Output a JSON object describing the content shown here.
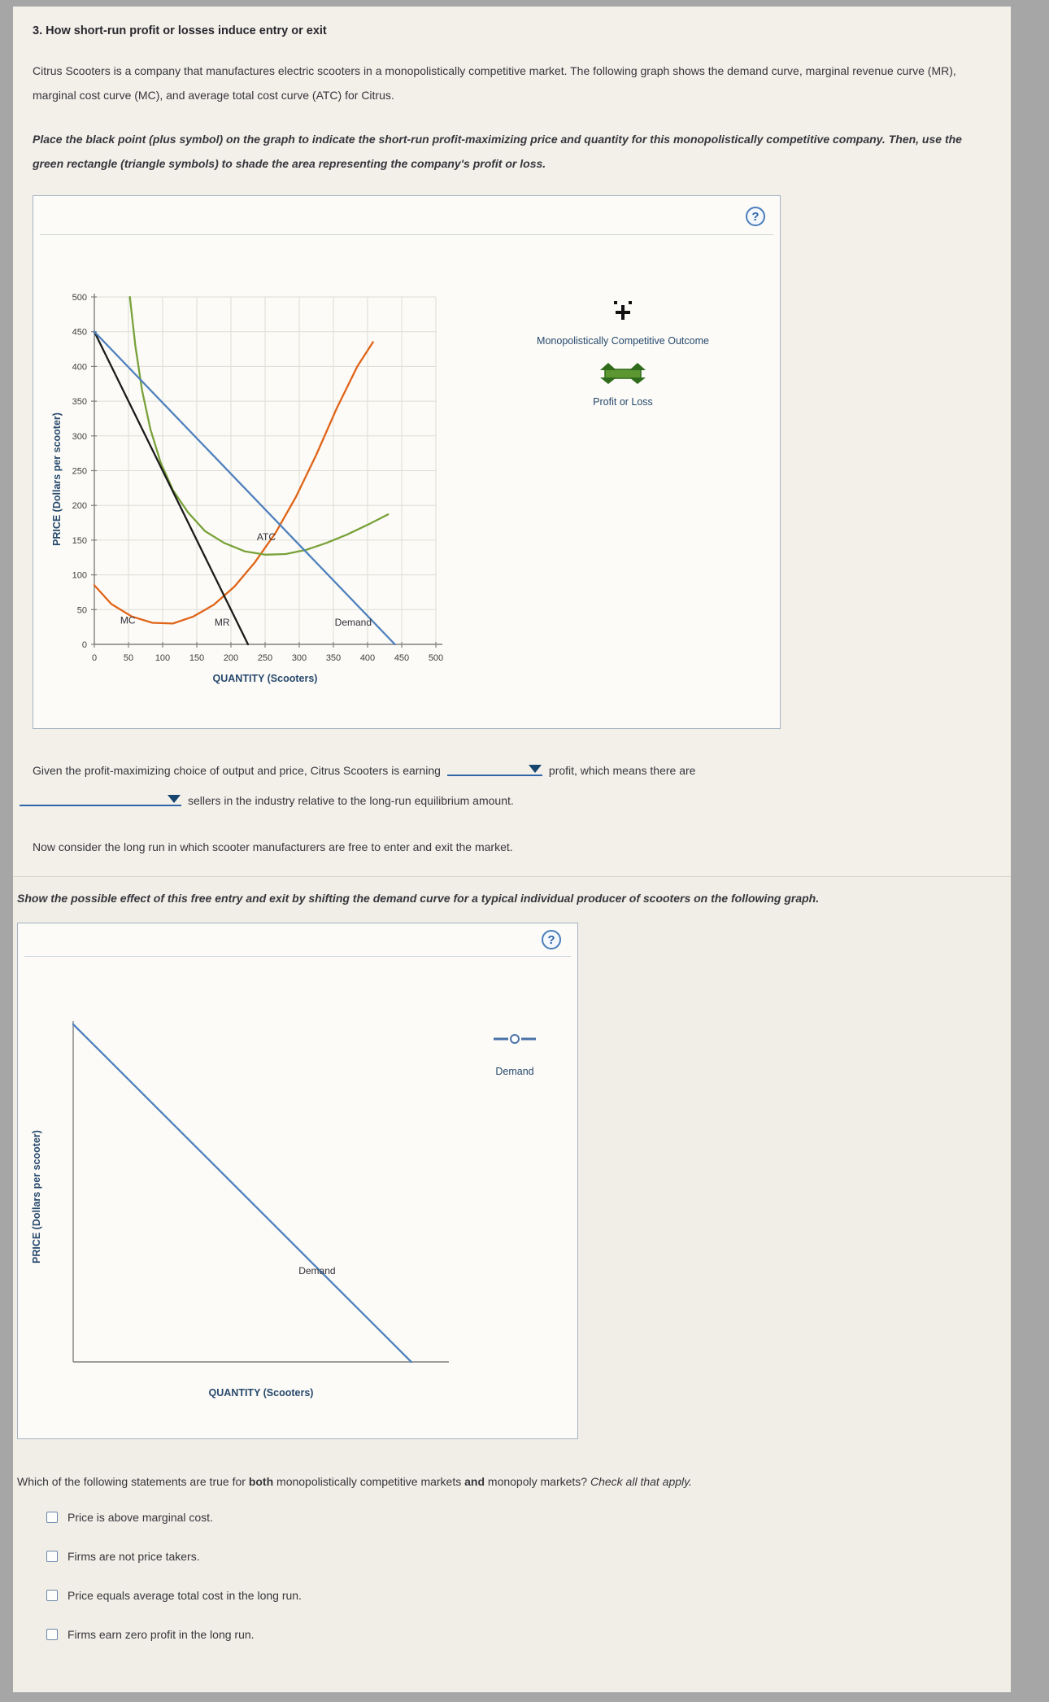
{
  "help_label": "?",
  "heading": "3. How short-run profit or losses induce entry or exit",
  "intro": "Citrus Scooters is a company that manufactures electric scooters in a monopolistically competitive market. The following graph shows the demand curve, marginal revenue curve (MR), marginal cost curve (MC), and average total cost curve (ATC) for Citrus.",
  "instruction1": "Place the black point (plus symbol) on the graph to indicate the short-run profit-maximizing price and quantity for this monopolistically competitive company. Then, use the green rectangle (triangle symbols) to shade the area representing the company's profit or loss.",
  "graph1_legend": {
    "point_tool": "Monopolistically Competitive Outcome",
    "shade_tool": "Profit or Loss"
  },
  "fill": {
    "p1": "Given the profit-maximizing choice of output and price, Citrus Scooters is earning",
    "p2": "profit, which means there are",
    "p3": "sellers in the industry relative to the long-run equilibrium amount."
  },
  "long_run": "Now consider the long run in which scooter manufacturers are free to enter and exit the market.",
  "instruction2": "Show the possible effect of this free entry and exit by shifting the demand curve for a typical individual producer of scooters on the following graph.",
  "graph2_legend": "Demand",
  "question": {
    "p1": "Which of the following statements are true for",
    "b1": "both",
    "p2": "monopolistically competitive markets",
    "b2": "and",
    "p3": "monopoly markets?",
    "italic": "Check all that apply."
  },
  "checklist": [
    "Price is above marginal cost.",
    "Firms are not price takers.",
    "Price equals average total cost in the long run.",
    "Firms earn zero profit in the long run."
  ],
  "colors": {
    "demand": "#4f81bd",
    "mc": "#e06418",
    "atc": "#79a23a",
    "mr": "#1b1b1b",
    "accent_blue": "#2f66a8",
    "dropdown_triangle": "#17456e",
    "axis_title": "#27496d"
  },
  "chart_data": [
    {
      "type": "line",
      "xlabel": "QUANTITY (Scooters)",
      "ylabel": "PRICE (Dollars per scooter)",
      "xlim": [
        0,
        500
      ],
      "ylim": [
        0,
        500
      ],
      "xticks": [
        0,
        50,
        100,
        150,
        200,
        250,
        300,
        350,
        400,
        450,
        500
      ],
      "yticks": [
        0,
        50,
        100,
        150,
        200,
        250,
        300,
        350,
        400,
        450,
        500
      ],
      "grid": true,
      "series": [
        {
          "name": "MC",
          "color": "#e06418",
          "points": [
            [
              0,
              85
            ],
            [
              25,
              58
            ],
            [
              55,
              40
            ],
            [
              85,
              31
            ],
            [
              115,
              30
            ],
            [
              145,
              40
            ],
            [
              175,
              57
            ],
            [
              205,
              83
            ],
            [
              235,
              118
            ],
            [
              265,
              160
            ],
            [
              295,
              212
            ],
            [
              325,
              273
            ],
            [
              355,
              340
            ],
            [
              385,
              400
            ],
            [
              408,
              435
            ]
          ]
        },
        {
          "name": "ATC",
          "color": "#79a23a",
          "points": [
            [
              52,
              500
            ],
            [
              60,
              430
            ],
            [
              70,
              365
            ],
            [
              82,
              310
            ],
            [
              97,
              262
            ],
            [
              115,
              222
            ],
            [
              137,
              190
            ],
            [
              162,
              163
            ],
            [
              190,
              146
            ],
            [
              220,
              134
            ],
            [
              250,
              129
            ],
            [
              280,
              130
            ],
            [
              310,
              136
            ],
            [
              340,
              146
            ],
            [
              370,
              158
            ],
            [
              400,
              172
            ],
            [
              430,
              187
            ]
          ]
        },
        {
          "name": "MR",
          "color": "#1b1b1b",
          "points": [
            [
              0,
              450
            ],
            [
              225,
              0
            ]
          ]
        },
        {
          "name": "Demand",
          "color": "#4f81bd",
          "points": [
            [
              0,
              450
            ],
            [
              440,
              0
            ]
          ]
        }
      ],
      "labels": [
        {
          "text": "MC",
          "x": 38,
          "y": 30
        },
        {
          "text": "MR",
          "x": 176,
          "y": 27
        },
        {
          "text": "Demand",
          "x": 352,
          "y": 27
        },
        {
          "text": "ATC",
          "x": 238,
          "y": 150
        }
      ]
    },
    {
      "type": "line",
      "xlabel": "QUANTITY (Scooters)",
      "ylabel": "PRICE (Dollars per scooter)",
      "xlim": [
        0,
        100
      ],
      "ylim": [
        0,
        100
      ],
      "grid": false,
      "series": [
        {
          "name": "Demand",
          "color": "#4f81bd",
          "points": [
            [
              0,
              100
            ],
            [
              90,
              0
            ]
          ]
        }
      ],
      "labels": [
        {
          "text": "Demand",
          "x": 60,
          "y": 26
        }
      ]
    }
  ]
}
